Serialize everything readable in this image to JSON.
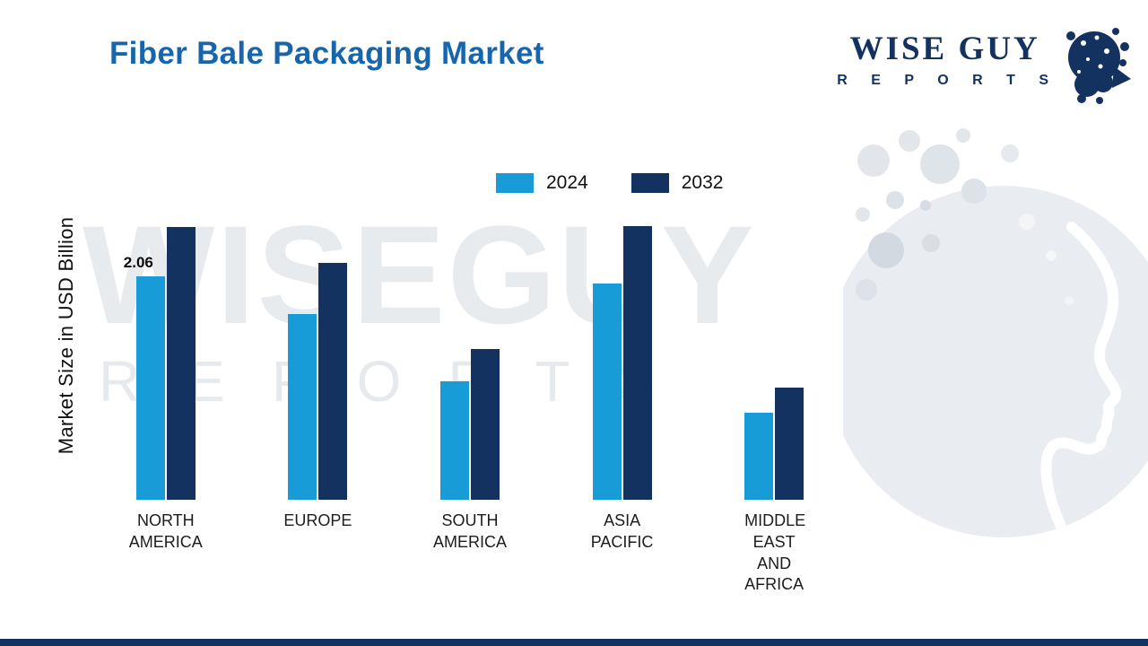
{
  "header": {
    "title": "Fiber Bale Packaging Market",
    "title_color": "#1766ad"
  },
  "logo": {
    "name": "WISE GUY",
    "subtitle": "R E P O R T S",
    "color": "#13325f"
  },
  "watermark": {
    "line1": "WISEGUY",
    "line2": "REPORTS"
  },
  "colors": {
    "series_2024": "#189cd8",
    "series_2032": "#13325f",
    "bottom_bar": "#13325f"
  },
  "chart_data": {
    "type": "bar",
    "title": "Fiber Bale Packaging Market",
    "xlabel": "",
    "ylabel": "Market Size in USD Billion",
    "categories": [
      "NORTH AMERICA",
      "EUROPE",
      "SOUTH AMERICA",
      "ASIA PACIFIC",
      "MIDDLE EAST AND AFRICA"
    ],
    "series": [
      {
        "name": "2024",
        "color": "#189cd8",
        "values": [
          2.06,
          1.71,
          1.09,
          1.99,
          0.8
        ]
      },
      {
        "name": "2032",
        "color": "#13325f",
        "values": [
          2.51,
          2.18,
          1.39,
          2.52,
          1.03
        ]
      }
    ],
    "annotations": [
      {
        "text": "2.06",
        "category_index": 0,
        "series_index": 0
      }
    ],
    "ylim": [
      0,
      2.6
    ],
    "grid": false,
    "legend_position": "top"
  }
}
